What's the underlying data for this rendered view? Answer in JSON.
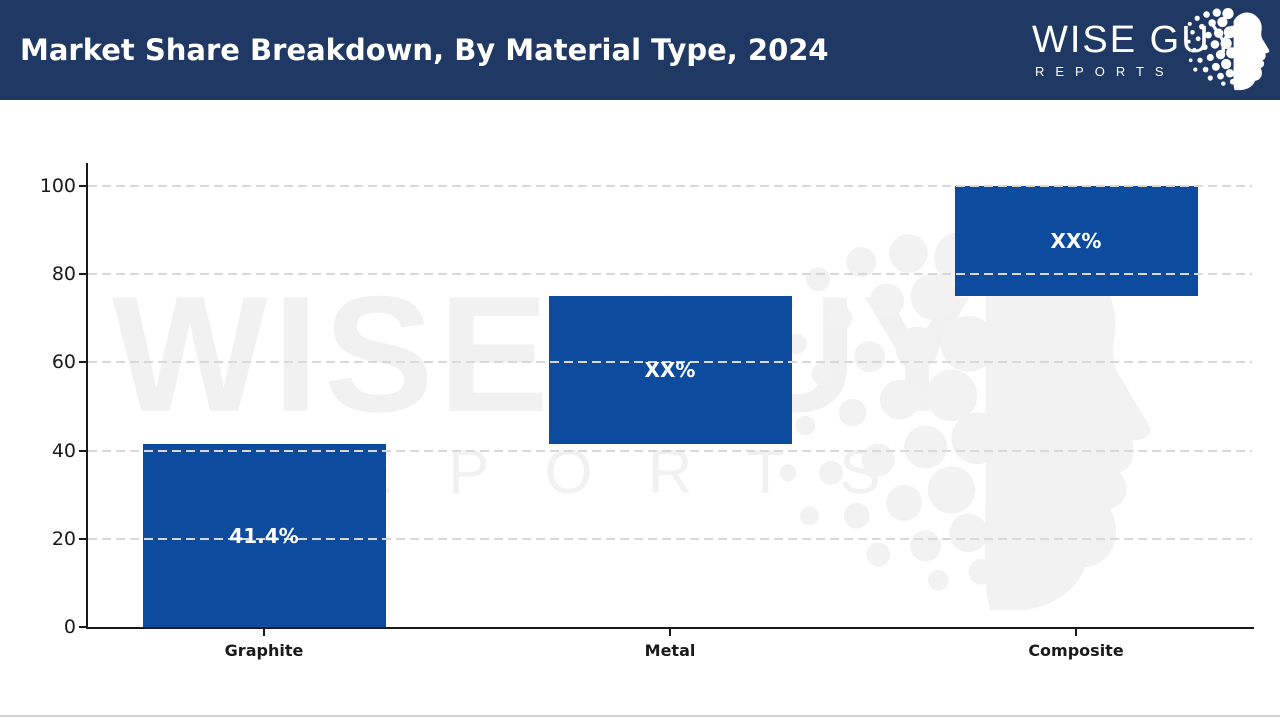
{
  "header": {
    "title": "Market Share Breakdown, By Material Type, 2024",
    "bg_color": "#1F3864",
    "logo": {
      "line1": "WISE GUY",
      "line2": "REPORTS"
    }
  },
  "watermark": {
    "line1": "WISE GUY",
    "line2": "REPORTS"
  },
  "chart_data": {
    "type": "bar",
    "subtype": "waterfall",
    "title": "Market Share Breakdown, By Material Type, 2024",
    "categories": [
      "Graphite",
      "Metal",
      "Composite"
    ],
    "segments": [
      {
        "category": "Graphite",
        "start": 0,
        "end": 41.4,
        "label": "41.4%"
      },
      {
        "category": "Metal",
        "start": 41.4,
        "end": 75,
        "label": "XX%"
      },
      {
        "category": "Composite",
        "start": 75,
        "end": 100,
        "label": "XX%"
      }
    ],
    "yticks": [
      0,
      20,
      40,
      60,
      80,
      100
    ],
    "ylim": [
      0,
      105
    ],
    "xlabel": "",
    "ylabel": "",
    "grid": true,
    "grid_style": "dashed",
    "bar_color": "#0C4B9E",
    "bar_label_color": "#FFFFFF",
    "grid_color": "#D8D8D8",
    "axis_color": "#1A1A1A"
  }
}
